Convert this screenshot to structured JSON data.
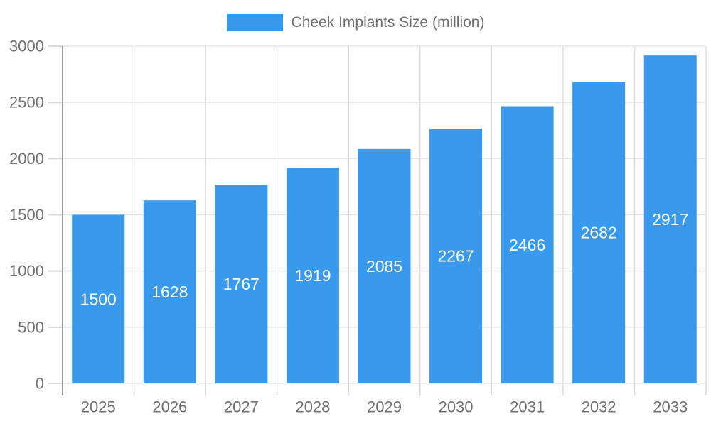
{
  "colors": {
    "bar": "#3999EC",
    "grid_horizontal": "#E5E5E5",
    "grid_vertical": "#DEDEDE",
    "axis_line": "#999999",
    "tick": "#D8D8D8",
    "axis_text": "#6F6F6F",
    "legend_text": "#6F6F6F",
    "value_label_text": "#FFFFFF",
    "background": "#FFFFFF"
  },
  "chart_data": {
    "type": "bar",
    "title": "Cheek Implants Size (million)",
    "legend_position": "top",
    "categories": [
      "2025",
      "2026",
      "2027",
      "2028",
      "2029",
      "2030",
      "2031",
      "2032",
      "2033"
    ],
    "values": [
      1500,
      1628,
      1767,
      1919,
      2085,
      2267,
      2466,
      2682,
      2917
    ],
    "series": [
      {
        "name": "Cheek Implants Size (million)",
        "values": [
          1500,
          1628,
          1767,
          1919,
          2085,
          2267,
          2466,
          2682,
          2917
        ]
      }
    ],
    "xlabel": "",
    "ylabel": "",
    "ylim": [
      0,
      3000
    ],
    "yticks": [
      0,
      500,
      1000,
      1500,
      2000,
      2500,
      3000
    ],
    "grid": true,
    "value_labels": "inside-center-white"
  }
}
